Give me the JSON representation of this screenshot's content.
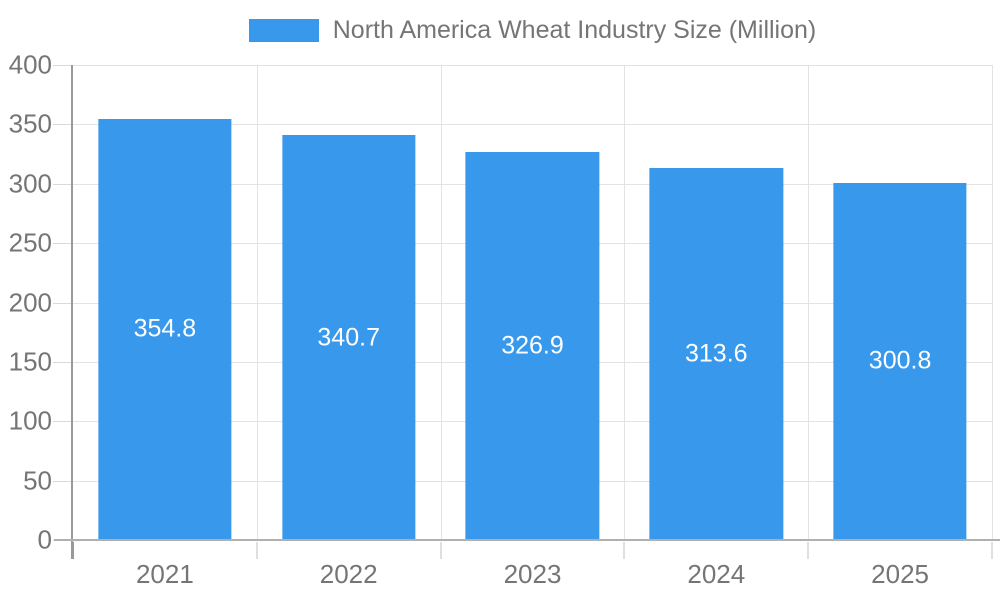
{
  "chart_data": {
    "type": "bar",
    "title": "North America Wheat Industry Size (Million)",
    "categories": [
      "2021",
      "2022",
      "2023",
      "2024",
      "2025"
    ],
    "values": [
      354.8,
      340.7,
      326.9,
      313.6,
      300.8
    ],
    "xlabel": "",
    "ylabel": "",
    "ylim": [
      0,
      400
    ],
    "yticks": [
      0,
      50,
      100,
      150,
      200,
      250,
      300,
      350,
      400
    ],
    "grid": true,
    "legend_position": "top",
    "value_labels": "inside-center"
  },
  "legend": {
    "label": "North America Wheat Industry Size (Million)"
  },
  "colors": {
    "bar": "#3898ec",
    "axis_text": "#757575",
    "value_label_text": "#ffffff",
    "grid_line": "#e3e3e3",
    "y_axis_line": "#999999",
    "x_axis_line": "#b0b0b0",
    "tick": "#d9d9d9"
  }
}
